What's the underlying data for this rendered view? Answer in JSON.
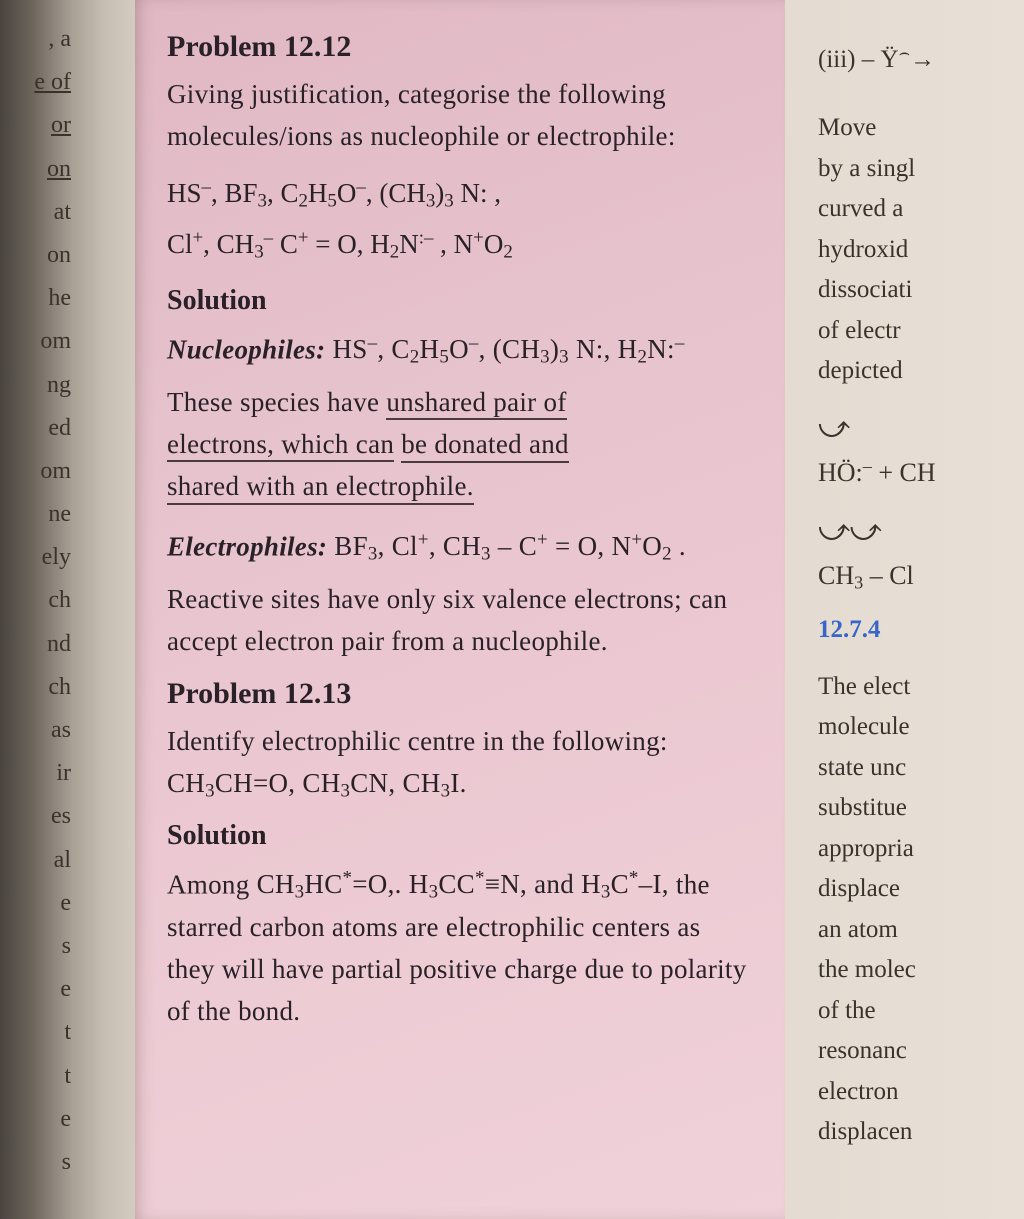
{
  "left_gutter": {
    "items": [
      ", a",
      "e of",
      "or",
      "on",
      "at",
      "on",
      "he",
      "om",
      "ng",
      "ed",
      "om",
      "ne",
      "ely",
      "ch",
      "nd",
      "ch",
      "as",
      "ir",
      "es",
      "al",
      "e",
      "s",
      "e",
      "t",
      "t",
      "e",
      "s",
      "(",
      ""
    ]
  },
  "problem1": {
    "title": "Problem 12.12",
    "body": "Giving justification, categorise the following molecules/ions as nucleophile or electrophile:",
    "formula_html": "HS<sup>–</sup>, BF<sub>3</sub>, C<sub>2</sub>H<sub>5</sub>O<sup>–</sup>, (CH<sub>3</sub>)<sub>3</sub> N: ,<br>Cl<sup>+</sup>, CH<sub>3</sub><sup>–</sup> C<sup>+</sup> = O, H<sub>2</sub>N<sup>:–</sup> , N<sup>+</sup>O<sub>2</sub>"
  },
  "solution1": {
    "heading": "Solution",
    "nucleo_label": "Nucleophiles:",
    "nucleo_formula_html": "HS<sup>–</sup>, C<sub>2</sub>H<sub>5</sub>O<sup>–</sup>, (CH<sub>3</sub>)<sub>3</sub> N:, H<sub>2</sub>N:<sup>–</sup>",
    "nucleo_text_u1": "These species have",
    "nucleo_text_u2": "unshared pair of",
    "nucleo_text_u3": "electrons, which can",
    "nucleo_text_u4": "be donated and",
    "nucleo_text_u5": "shared with an electrophile.",
    "electro_label": "Electrophiles:",
    "electro_formula_html": "BF<sub>3</sub>, Cl<sup>+</sup>, CH<sub>3</sub> – C<sup>+</sup> = O, N<sup>+</sup>O<sub>2</sub> .",
    "electro_text": "Reactive sites have only six valence electrons; can accept electron pair from a nucleophile."
  },
  "problem2": {
    "title": "Problem 12.13",
    "body": "Identify electrophilic centre in the following:",
    "body_formula_html": "CH<sub>3</sub>CH=O, CH<sub>3</sub>CN, CH<sub>3</sub>I.",
    "solution_heading": "Solution",
    "sol_text_prefix": "Among ",
    "sol_formula_html": "CH<sub>3</sub>HC<sup>*</sup>=O,. H<sub>3</sub>CC<sup>*</sup>≡N, and H<sub>3</sub>C<sup>*</sup>–I,",
    "sol_text_rest": " the starred carbon atoms are electrophilic centers as they will have partial positive charge due to polarity of the bond."
  },
  "right": {
    "iii_label": "(iii)",
    "iii_formula_html": "– Ÿ<sup>⌢</sup>→",
    "lines": [
      "Move",
      "by a singl",
      "curved a",
      "hydroxid",
      "dissociati",
      "of electr",
      "depicted"
    ],
    "chem1_html": "HÖ:<sup>–</sup> + CH",
    "chem2_html": "CH<sub>3</sub> – Cl ",
    "section_num": "12.7.4",
    "lines2": [
      "The elect",
      "molecule",
      "state unc",
      "substitue",
      "appropria",
      "displace",
      "an atom",
      "the molec",
      "of the",
      "resonanc",
      "electron",
      "displacen"
    ]
  },
  "colors": {
    "pink_bg": "#e6c2cc",
    "blue": "#3765c8",
    "text": "#2a2128"
  }
}
